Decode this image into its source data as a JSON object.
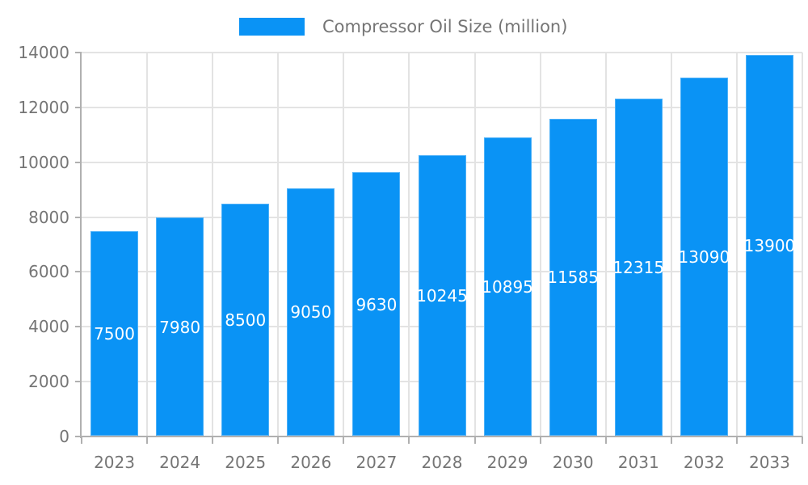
{
  "legend": {
    "label": "Compressor Oil Size (million)"
  },
  "chart_data": {
    "type": "bar",
    "title": "Compressor Oil Size (million)",
    "categories": [
      "2023",
      "2024",
      "2025",
      "2026",
      "2027",
      "2028",
      "2029",
      "2030",
      "2031",
      "2032",
      "2033"
    ],
    "series": [
      {
        "name": "Compressor Oil Size (million)",
        "values": [
          7500,
          7980,
          8500,
          9050,
          9630,
          10245,
          10895,
          11585,
          12315,
          13090,
          13900
        ]
      }
    ],
    "value_labels": [
      "7500",
      "7980",
      "8500",
      "9050",
      "9630",
      "10245",
      "10895",
      "11585",
      "12315",
      "13090",
      "13900"
    ],
    "xlabel": "",
    "ylabel": "",
    "ylim": [
      0,
      14000
    ],
    "yticks": [
      0,
      2000,
      4000,
      6000,
      8000,
      10000,
      12000,
      14000
    ],
    "ytick_labels": [
      "0",
      "2000",
      "4000",
      "6000",
      "8000",
      "10000",
      "12000",
      "14000"
    ],
    "grid": true,
    "legend_position": "top-center",
    "colors": {
      "bar": "#0a93f5",
      "value_label": "#ffffff",
      "axis_text": "#757575",
      "grid_line": "#e3e3e3",
      "axis_line": "#b0b0b0",
      "background": "#ffffff"
    }
  }
}
